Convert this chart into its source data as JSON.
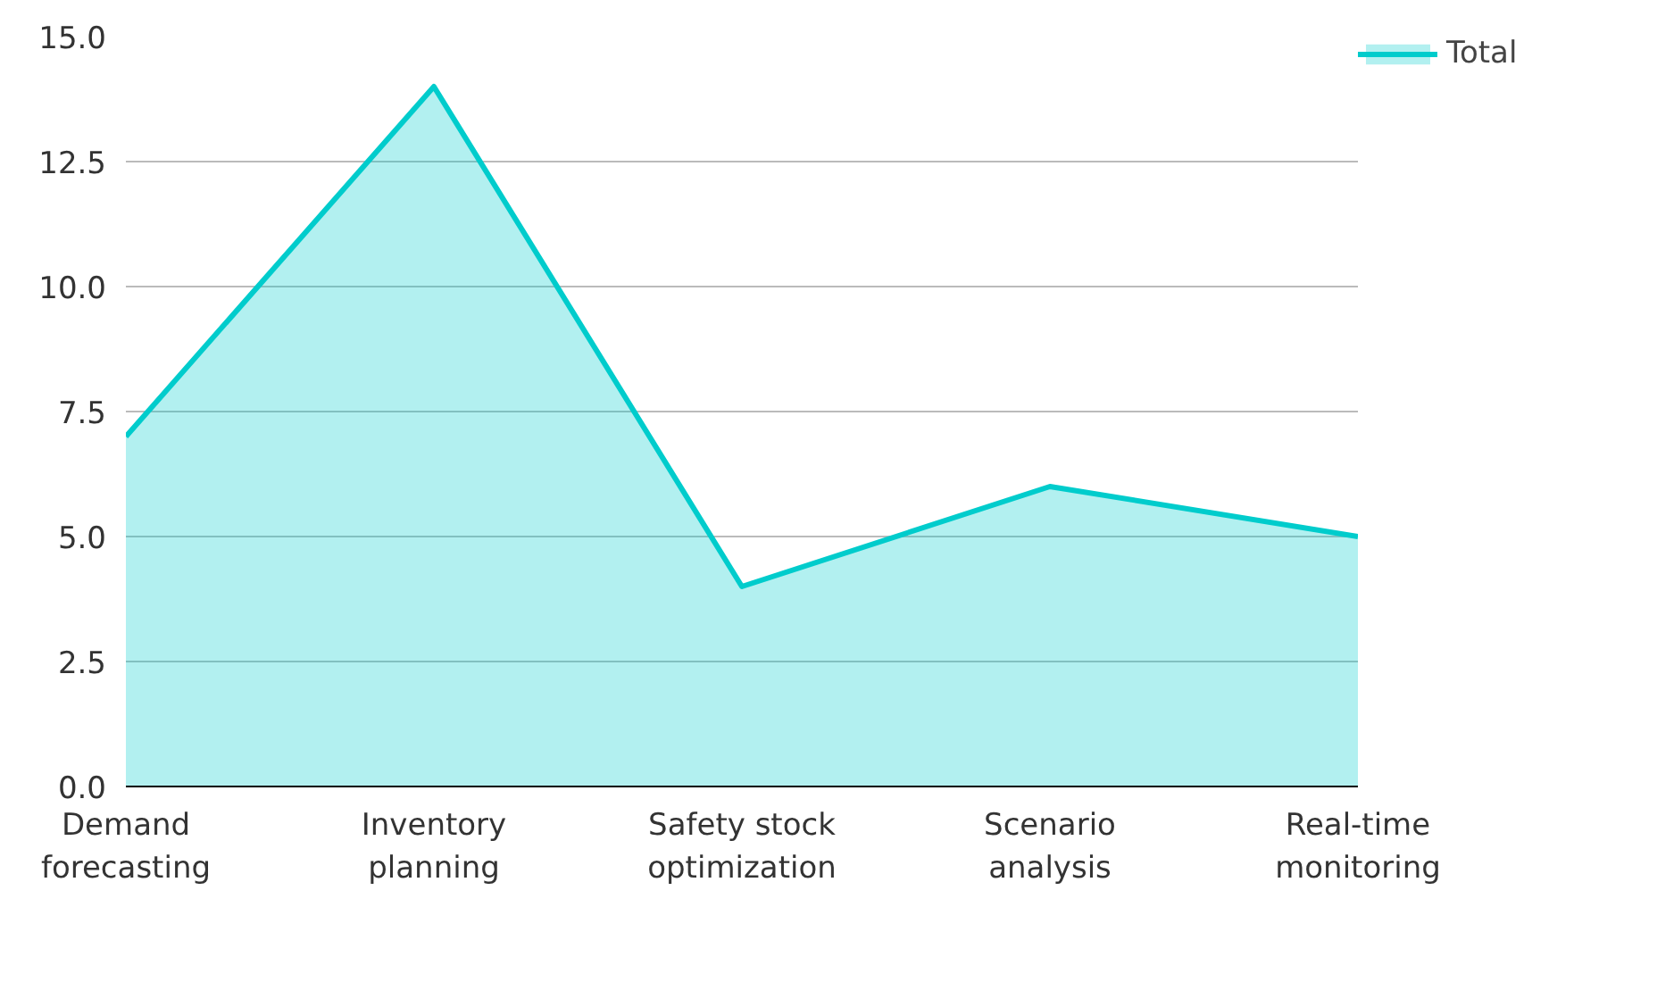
{
  "chart_data": {
    "type": "area",
    "categories": [
      "Demand\nforecasting",
      "Inventory\nplanning",
      "Safety stock\noptimization",
      "Scenario\nanalysis",
      "Real-time\nmonitoring"
    ],
    "series": [
      {
        "name": "Total",
        "color": "#00cccc",
        "values": [
          7,
          14,
          4,
          6,
          5
        ]
      }
    ],
    "ylim": [
      0,
      15
    ],
    "yticks": [
      {
        "value": 0,
        "label": "0.0"
      },
      {
        "value": 2.5,
        "label": "2.5"
      },
      {
        "value": 5,
        "label": "5.0"
      },
      {
        "value": 7.5,
        "label": "7.5"
      },
      {
        "value": 10,
        "label": "10.0"
      },
      {
        "value": 12.5,
        "label": "12.5"
      },
      {
        "value": 15,
        "label": "15.0"
      }
    ],
    "grid": "y",
    "legend": "top right"
  }
}
